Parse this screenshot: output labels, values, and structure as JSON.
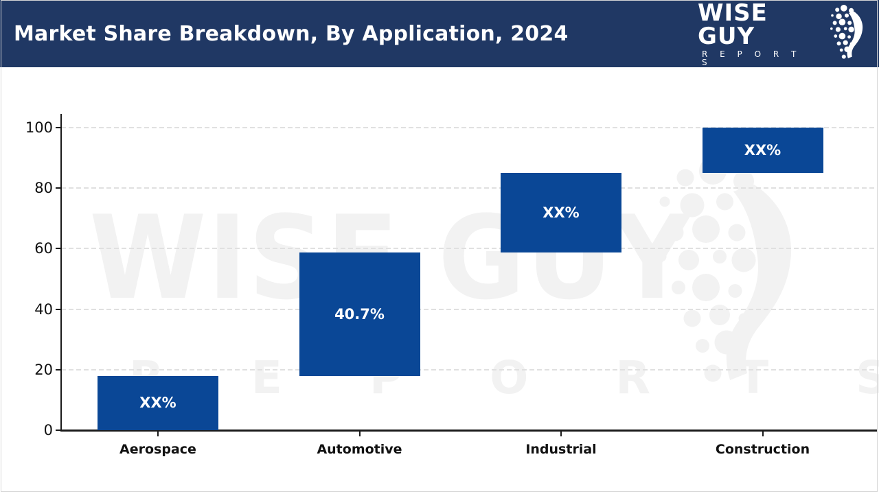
{
  "header": {
    "title": "Market Share Breakdown, By Application, 2024",
    "bg_color": "#203864",
    "logo": {
      "line1": "WISE GUY",
      "line2": "R E P O R T S"
    }
  },
  "watermark": {
    "line1": "WISE GUY",
    "line2": "R E P O R T S"
  },
  "chart_data": {
    "type": "bar",
    "subtype": "floating-waterfall",
    "title": "Market Share Breakdown, By Application, 2024",
    "categories": [
      "Aerospace",
      "Automotive",
      "Industrial",
      "Construction"
    ],
    "bars": [
      {
        "category": "Aerospace",
        "start": 0,
        "end": 18,
        "label": "XX%"
      },
      {
        "category": "Automotive",
        "start": 18,
        "end": 58.7,
        "label": "40.7%"
      },
      {
        "category": "Industrial",
        "start": 58.7,
        "end": 85,
        "label": "XX%"
      },
      {
        "category": "Construction",
        "start": 85,
        "end": 100,
        "label": "XX%"
      }
    ],
    "yticks": [
      0,
      20,
      40,
      60,
      80,
      100
    ],
    "ylim": [
      0,
      104.5
    ],
    "xlabel": "",
    "ylabel": "",
    "bar_color": "#0a4796",
    "label_color": "#ffffff",
    "grid": {
      "horizontal": true,
      "style": "dashed",
      "color": "#e0e0e0"
    },
    "legend": null
  }
}
